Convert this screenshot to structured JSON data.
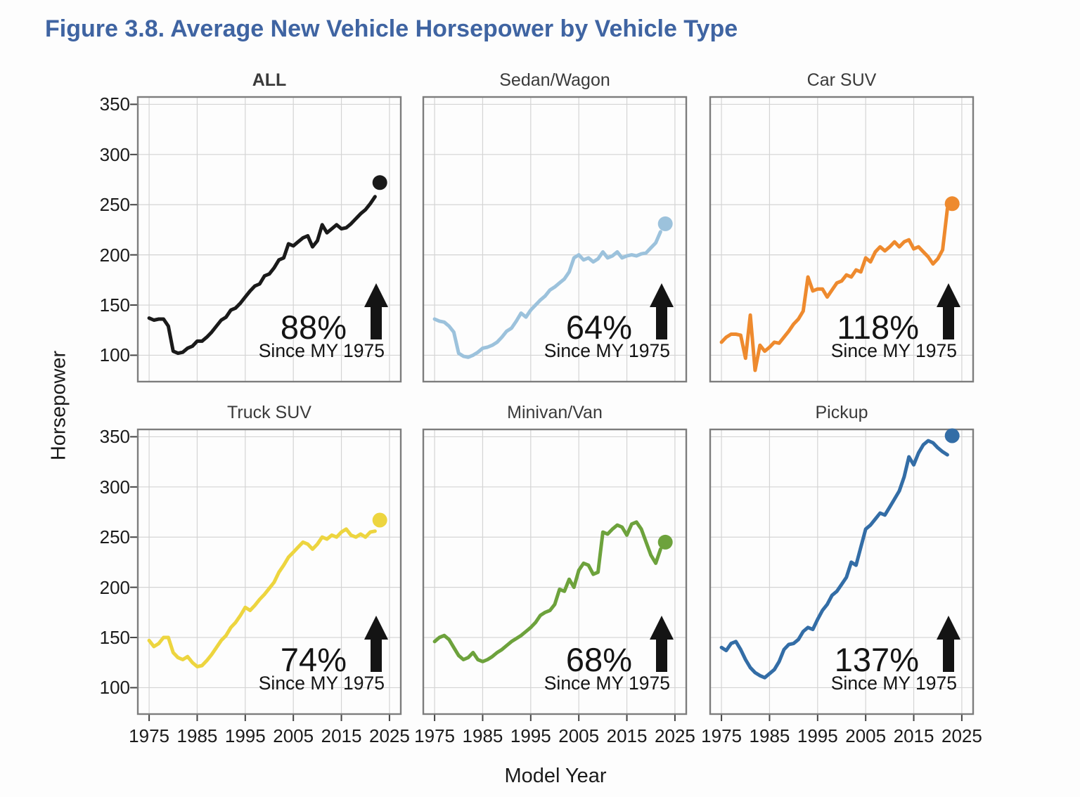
{
  "figure_title": "Figure 3.8. Average New Vehicle Horsepower by Vehicle Type",
  "x_axis_title": "Model Year",
  "y_axis_title": "Horsepower",
  "colors": {
    "figure_title": "#3f64a2",
    "gridline": "#d4d4d4",
    "panel_border": "#7d7d7d",
    "tick": "#444444",
    "annotation": "#141414"
  },
  "chart_data": {
    "type": "line",
    "title": "Figure 3.8. Average New Vehicle Horsepower by Vehicle Type",
    "xlabel": "Model Year",
    "ylabel": "Horsepower",
    "x_ticks": [
      1975,
      1985,
      1995,
      2005,
      2015,
      2025
    ],
    "y_ticks": [
      350,
      300,
      250,
      200,
      150,
      100
    ],
    "x_range": [
      1972.5,
      2027.5
    ],
    "y_range": [
      73,
      358
    ],
    "grid": true,
    "legend": "none",
    "series_years_start": 1975,
    "series_years_end": 2022,
    "panels": [
      {
        "title": "ALL",
        "emphasis": true,
        "color": "#1a1a1a",
        "pct": "88%",
        "since": "Since MY 1975",
        "values": [
          137,
          135,
          136,
          136,
          129,
          104,
          102,
          103,
          107,
          109,
          114,
          114,
          118,
          123,
          129,
          135,
          138,
          145,
          147,
          152,
          158,
          164,
          169,
          171,
          179,
          181,
          187,
          195,
          197,
          211,
          209,
          213,
          217,
          219,
          208,
          214,
          230,
          222,
          226,
          230,
          226,
          227,
          231,
          236,
          241,
          245,
          251,
          258
        ],
        "dot": {
          "year": 2023,
          "value": 272
        }
      },
      {
        "title": "Sedan/Wagon",
        "emphasis": false,
        "color": "#9cc2dc",
        "pct": "64%",
        "since": "Since MY 1975",
        "values": [
          136,
          134,
          133,
          129,
          123,
          102,
          99,
          98,
          100,
          103,
          107,
          108,
          110,
          113,
          118,
          124,
          127,
          134,
          142,
          138,
          145,
          150,
          155,
          159,
          165,
          168,
          172,
          176,
          183,
          197,
          200,
          195,
          197,
          193,
          196,
          203,
          197,
          199,
          203,
          197,
          199,
          200,
          199,
          201,
          202,
          207,
          212,
          223
        ],
        "dot": {
          "year": 2023,
          "value": 231
        }
      },
      {
        "title": "Car SUV",
        "emphasis": false,
        "color": "#ee8a2e",
        "pct": "118%",
        "since": "Since MY 1975",
        "values": [
          113,
          118,
          121,
          121,
          120,
          97,
          140,
          85,
          110,
          104,
          108,
          113,
          112,
          118,
          124,
          131,
          136,
          144,
          178,
          164,
          166,
          166,
          158,
          165,
          172,
          174,
          180,
          178,
          185,
          183,
          197,
          193,
          203,
          208,
          204,
          208,
          213,
          208,
          213,
          215,
          206,
          208,
          203,
          198,
          191,
          196,
          205,
          246
        ],
        "dot": {
          "year": 2023,
          "value": 251
        }
      },
      {
        "title": "Truck SUV",
        "emphasis": false,
        "color": "#edd53f",
        "pct": "74%",
        "since": "Since MY 1975",
        "values": [
          147,
          141,
          144,
          150,
          150,
          135,
          130,
          128,
          131,
          125,
          121,
          122,
          127,
          133,
          140,
          147,
          152,
          160,
          165,
          172,
          180,
          177,
          182,
          188,
          193,
          199,
          205,
          215,
          222,
          230,
          235,
          240,
          245,
          243,
          238,
          243,
          250,
          248,
          252,
          250,
          255,
          258,
          252,
          250,
          253,
          250,
          255,
          256
        ],
        "dot": {
          "year": 2023,
          "value": 267
        }
      },
      {
        "title": "Minivan/Van",
        "emphasis": false,
        "color": "#6da23c",
        "pct": "68%",
        "since": "Since MY 1975",
        "values": [
          146,
          150,
          152,
          148,
          140,
          132,
          128,
          130,
          135,
          128,
          126,
          128,
          131,
          135,
          138,
          142,
          146,
          149,
          152,
          156,
          160,
          165,
          172,
          175,
          177,
          183,
          198,
          196,
          208,
          200,
          217,
          224,
          222,
          213,
          215,
          255,
          253,
          258,
          262,
          260,
          252,
          263,
          265,
          258,
          245,
          232,
          224,
          238
        ],
        "dot": {
          "year": 2023,
          "value": 245
        }
      },
      {
        "title": "Pickup",
        "emphasis": false,
        "color": "#336da6",
        "pct": "137%",
        "since": "Since MY 1975",
        "values": [
          140,
          137,
          144,
          146,
          138,
          128,
          120,
          115,
          112,
          110,
          114,
          118,
          126,
          138,
          143,
          144,
          148,
          156,
          160,
          158,
          168,
          177,
          183,
          192,
          196,
          203,
          210,
          225,
          222,
          240,
          258,
          262,
          268,
          274,
          272,
          280,
          288,
          296,
          310,
          330,
          322,
          334,
          342,
          346,
          344,
          339,
          335,
          332
        ],
        "dot": {
          "year": 2023,
          "value": 351
        }
      }
    ]
  }
}
